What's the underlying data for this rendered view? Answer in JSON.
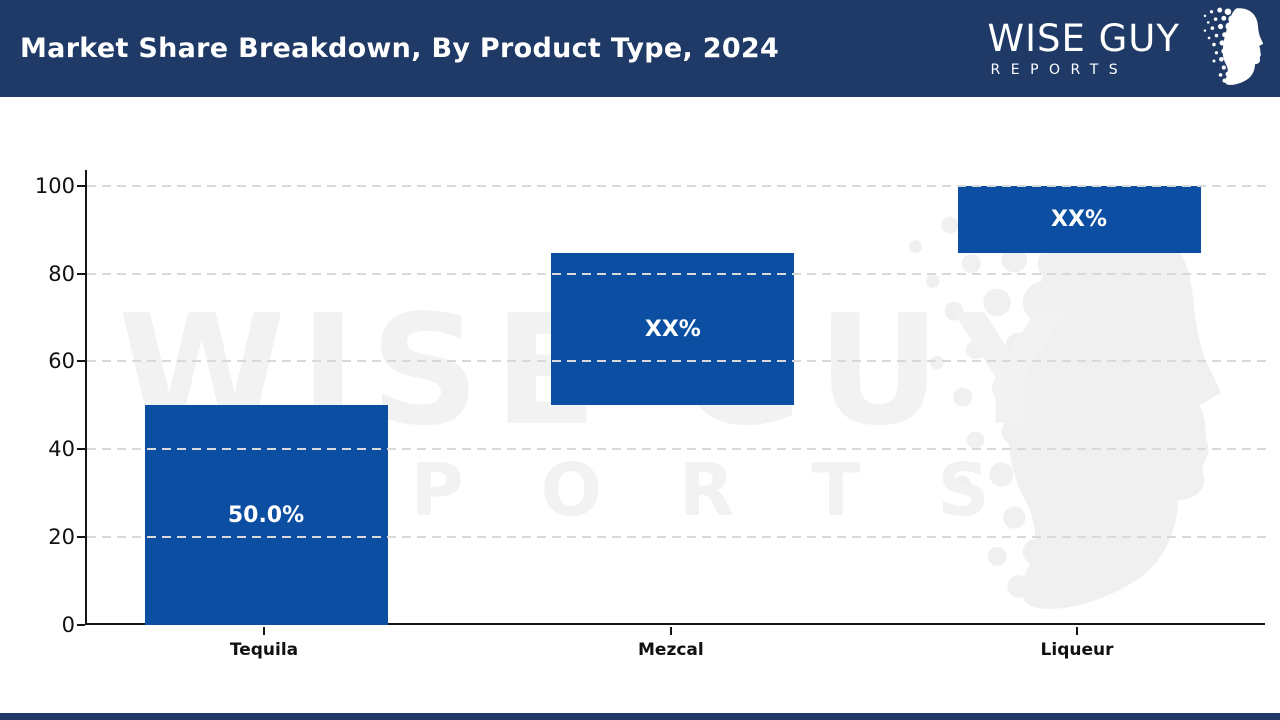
{
  "header": {
    "title": "Market Share Breakdown, By Product Type, 2024",
    "logo_line1": "WISE GUY",
    "logo_line2": "REPORTS"
  },
  "watermark": {
    "line1": "WISE GUY",
    "line2": "R E P O R T S"
  },
  "chart_data": {
    "type": "bar",
    "subtype": "waterfall",
    "title": "Market Share Breakdown, By Product Type, 2024",
    "categories": [
      "Tequila",
      "Mezcal",
      "Liqueur"
    ],
    "segments": [
      {
        "category": "Tequila",
        "start": 0,
        "end": 50,
        "label": "50.0%"
      },
      {
        "category": "Mezcal",
        "start": 50,
        "end": 84.7,
        "label": "XX%"
      },
      {
        "category": "Liqueur",
        "start": 84.7,
        "end": 100,
        "label": "XX%"
      }
    ],
    "yticks": [
      0,
      20,
      40,
      60,
      80,
      100
    ],
    "ylim": [
      0,
      103.6
    ],
    "xlabel": "",
    "ylabel": "",
    "grid": "horizontal-dashed",
    "legend": null,
    "bar_color": "#0b4ea2",
    "bar_label_color": "#ffffff"
  },
  "colors": {
    "header_bg": "#1f3a66",
    "footer_bg": "#1f3a66",
    "bar": "#0b4ea2",
    "grid": "#d9d9d9",
    "axis": "#151515",
    "watermark": "#f2f2f2"
  }
}
